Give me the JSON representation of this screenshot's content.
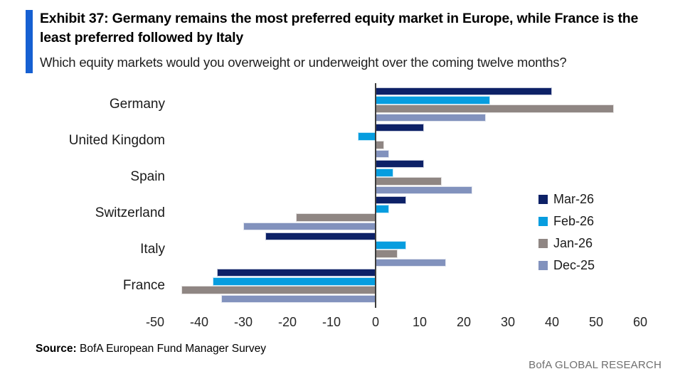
{
  "header": {
    "exhibit_title": "Exhibit 37: Germany remains the most preferred equity market in Europe, while France is the least preferred followed by Italy",
    "question": "Which equity markets would you overweight or underweight over the coming twelve months?",
    "accent_color": "#1660d2"
  },
  "chart_data": {
    "type": "bar",
    "orientation": "horizontal",
    "title": "",
    "xlabel": "",
    "ylabel": "",
    "xlim": [
      -50,
      60
    ],
    "x_ticks": [
      -50,
      -40,
      -30,
      -20,
      -10,
      0,
      10,
      20,
      30,
      40,
      50,
      60
    ],
    "grid": false,
    "legend_position": "right-inside",
    "categories": [
      "Germany",
      "United Kingdom",
      "Spain",
      "Switzerland",
      "Italy",
      "France"
    ],
    "series": [
      {
        "name": "Mar-26",
        "color": "#0d2167",
        "values": [
          40,
          11,
          11,
          7,
          -25,
          -36
        ]
      },
      {
        "name": "Feb-26",
        "color": "#069ddf",
        "values": [
          26,
          -4,
          4,
          3,
          7,
          -37
        ]
      },
      {
        "name": "Jan-26",
        "color": "#8f8683",
        "values": [
          54,
          2,
          15,
          -18,
          5,
          -44
        ]
      },
      {
        "name": "Dec-25",
        "color": "#8292bd",
        "values": [
          25,
          3,
          22,
          -30,
          16,
          -35
        ]
      }
    ]
  },
  "footer": {
    "source_label": "Source:",
    "source_text": " BofA European Fund Manager Survey",
    "brand": "BofA GLOBAL RESEARCH"
  }
}
